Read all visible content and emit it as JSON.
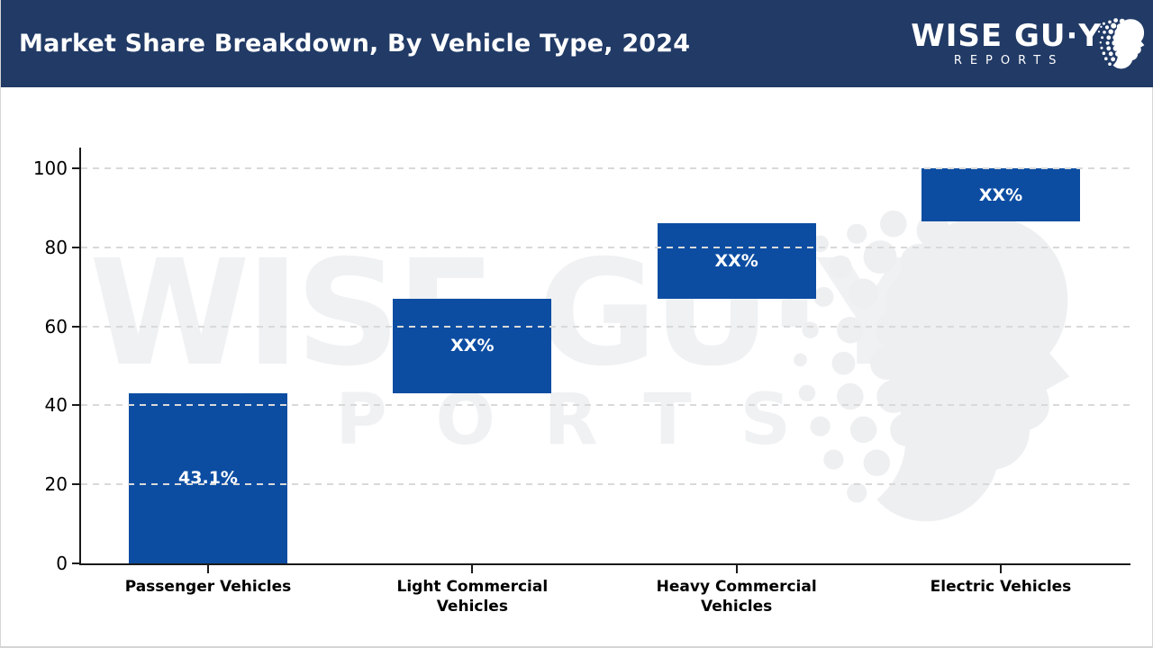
{
  "header": {
    "title": "Market Share Breakdown, By Vehicle Type, 2024",
    "logo": {
      "brand_top": "WISE GU·Y",
      "brand_bottom": "REPORTS"
    }
  },
  "watermark": {
    "brand_top": "WISE GU·Y",
    "brand_bottom": "REPORTS"
  },
  "chart_data": {
    "type": "bar",
    "variant": "floating-segment-waterfall",
    "title": "Market Share Breakdown, By Vehicle Type, 2024",
    "categories": [
      "Passenger Vehicles",
      "Light Commercial\nVehicles",
      "Heavy Commercial\nVehicles",
      "Electric Vehicles"
    ],
    "segments": [
      {
        "category": "Passenger Vehicles",
        "start": 0,
        "end": 43.1,
        "label": "43.1%"
      },
      {
        "category": "Light Commercial Vehicles",
        "start": 43.1,
        "end": 67.0,
        "label": "XX%"
      },
      {
        "category": "Heavy Commercial Vehicles",
        "start": 67.0,
        "end": 86.2,
        "label": "XX%"
      },
      {
        "category": "Electric Vehicles",
        "start": 86.5,
        "end": 100.0,
        "label": "XX%"
      }
    ],
    "xlabel": "",
    "ylabel": "",
    "ylim": [
      0,
      100
    ],
    "yticks": [
      0,
      20,
      40,
      60,
      80,
      100
    ],
    "grid": {
      "axis": "y",
      "style": "dashed",
      "color": "#d9d9d9",
      "above_bars": true
    },
    "legend_position": "none",
    "bar_color": "#0c4da2",
    "bar_label_color": "#ffffff",
    "axis_color": "#1a1a1a",
    "tick_label_color": "#000000"
  },
  "colors": {
    "header_bg": "#213a66",
    "page_bg": "#ffffff",
    "watermark_text": "#eff1f3",
    "watermark_face": "#edeff1",
    "page_border": "#d5d5d5"
  }
}
